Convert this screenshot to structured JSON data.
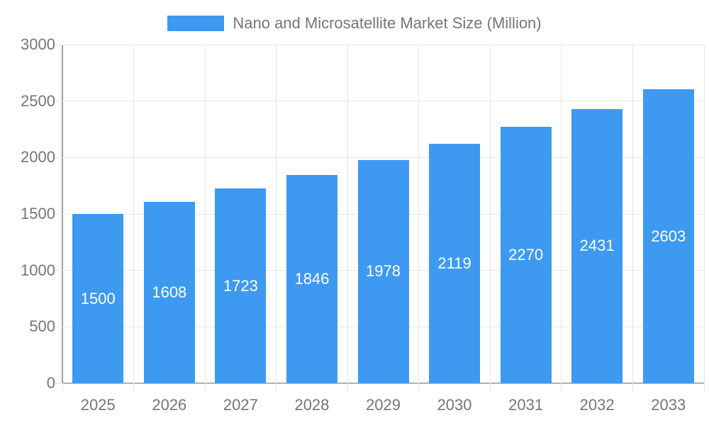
{
  "legend": {
    "label": "Nano and Microsatellite Market Size (Million)"
  },
  "chart_data": {
    "type": "bar",
    "title": "Nano and Microsatellite Market Size (Million)",
    "categories": [
      "2025",
      "2026",
      "2027",
      "2028",
      "2029",
      "2030",
      "2031",
      "2032",
      "2033"
    ],
    "series": [
      {
        "name": "Nano and Microsatellite Market Size (Million)",
        "values": [
          1500,
          1608,
          1723,
          1846,
          1978,
          2119,
          2270,
          2431,
          2603
        ]
      }
    ],
    "value_labels": [
      "1500",
      "1608",
      "1723",
      "1846",
      "1978",
      "2119",
      "2270",
      "2431",
      "2603"
    ],
    "ytick_labels": [
      "0",
      "500",
      "1000",
      "1500",
      "2000",
      "2500",
      "3000"
    ],
    "ylim": [
      0,
      3000
    ],
    "ytick_step": 500,
    "grid": true,
    "legend_position": "top",
    "xlabel": "",
    "ylabel": "",
    "colors": {
      "bar": "#3d9af0",
      "grid": "#e6e6e6",
      "y_axis_line": "#9e9e9e",
      "x_axis_line": "#b0b0b0",
      "axis_text": "#757575",
      "value_text": "#ffffff",
      "background": "#ffffff"
    }
  }
}
